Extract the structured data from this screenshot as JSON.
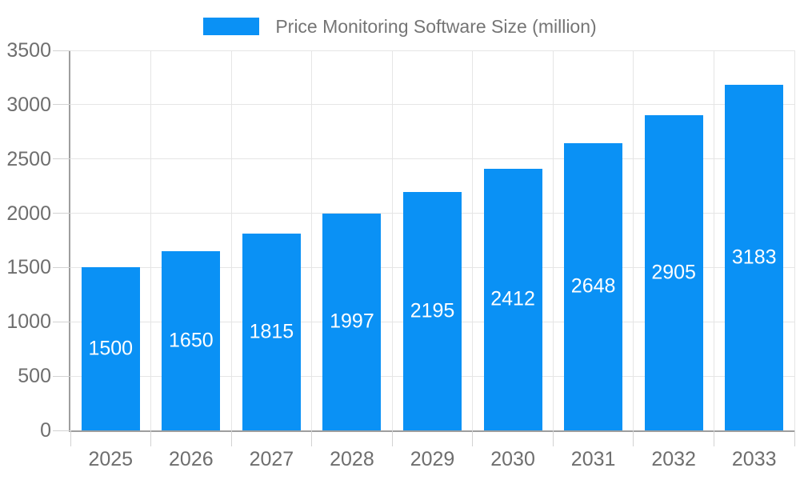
{
  "legend": {
    "label": "Price Monitoring Software Size (million)"
  },
  "chart_data": {
    "type": "bar",
    "title": "Price Monitoring Software Size (million)",
    "series_name": "Price Monitoring Software Size (million)",
    "categories": [
      "2025",
      "2026",
      "2027",
      "2028",
      "2029",
      "2030",
      "2031",
      "2032",
      "2033"
    ],
    "values": [
      1500,
      1650,
      1815,
      1997,
      2195,
      2412,
      2648,
      2905,
      3183
    ],
    "xlabel": "",
    "ylabel": "",
    "ylim": [
      0,
      3500
    ],
    "ytick_step": 500,
    "yticks": [
      0,
      500,
      1000,
      1500,
      2000,
      2500,
      3000,
      3500
    ],
    "grid": true,
    "legend_position": "top",
    "bar_labels": "inside-center"
  },
  "colors": {
    "bar": "#0a91f5",
    "bar_label": "#ffffff",
    "axis_line": "#9e9e9e",
    "gridline": "#e5e5e5",
    "tick_mark": "#d2d2d2",
    "tick_label": "#6e6e6e",
    "legend_text": "#757575",
    "background": "#ffffff"
  }
}
